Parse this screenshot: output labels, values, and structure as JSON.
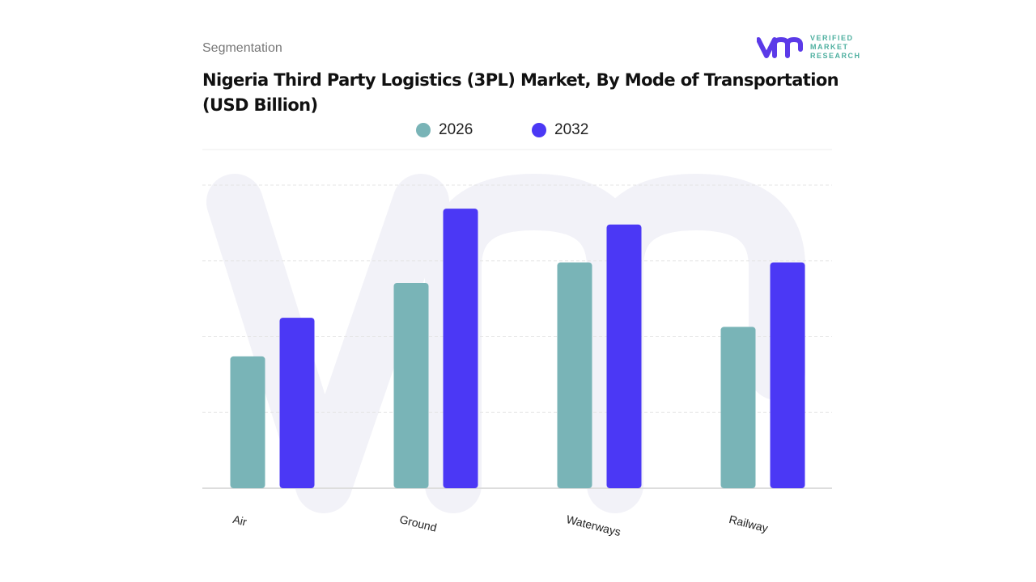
{
  "header": {
    "segment_label": "Segmentation"
  },
  "logo": {
    "mark": "vmr",
    "text": [
      "VERIFIED",
      "MARKET",
      "RESEARCH"
    ]
  },
  "colors": {
    "s2026": "#79b4b7",
    "s2032": "#4b38f5",
    "logo_mark": "#5b3ae8",
    "logo_text": "#4fb0a0"
  },
  "chart_data": {
    "type": "bar",
    "title": "Nigeria Third Party Logistics (3PL) Market, By Mode of Transportation (USD Billion)",
    "categories": [
      "Air",
      "Ground",
      "Waterways",
      "Railway"
    ],
    "series": [
      {
        "name": "2026",
        "values": [
          1.74,
          2.71,
          2.98,
          2.13
        ]
      },
      {
        "name": "2032",
        "values": [
          2.25,
          3.69,
          3.48,
          2.98
        ]
      }
    ],
    "ylim": [
      0,
      4
    ],
    "grid": true,
    "legend": "top-center",
    "xlabel": "",
    "ylabel": ""
  }
}
